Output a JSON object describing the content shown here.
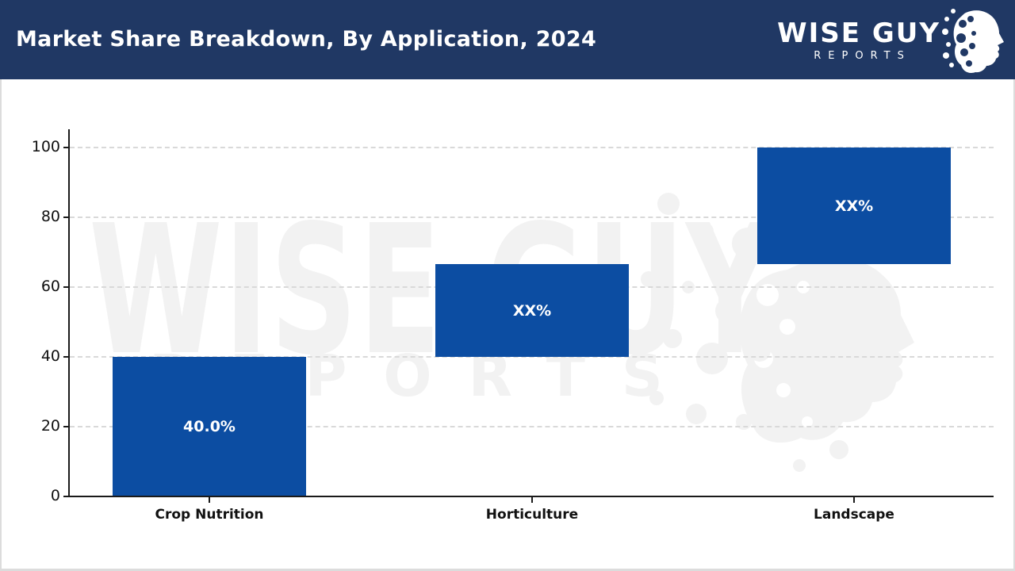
{
  "header": {
    "title": "Market Share Breakdown, By Application, 2024",
    "logo": {
      "wordmark": "WISE GUY",
      "subtitle": "REPORTS"
    }
  },
  "watermark": {
    "wordmark": "WISE GUY",
    "subtitle": "REPORTS"
  },
  "colors": {
    "header_bg": "#203864",
    "bar": "#0c4da2",
    "bar_label": "#ffffff",
    "grid": "#d9d9d9",
    "axis": "#1a1a1a",
    "tick_text": "#111111",
    "watermark": "#f2f2f2"
  },
  "chart_data": {
    "type": "bar",
    "subtype": "waterfall-segments",
    "title": "Market Share Breakdown, By Application, 2024",
    "categories": [
      "Crop Nutrition",
      "Horticulture",
      "Landscape"
    ],
    "segments": [
      {
        "category": "Crop Nutrition",
        "start": 0,
        "end": 40,
        "label": "40.0%"
      },
      {
        "category": "Horticulture",
        "start": 40,
        "end": 66.5,
        "label": "XX%"
      },
      {
        "category": "Landscape",
        "start": 66.5,
        "end": 100,
        "label": "XX%"
      }
    ],
    "xlabel": "",
    "ylabel": "",
    "ylim": [
      0,
      100
    ],
    "yticks": [
      0,
      20,
      40,
      60,
      80,
      100
    ],
    "grid": "horizontal-dashed",
    "legend": "none"
  }
}
